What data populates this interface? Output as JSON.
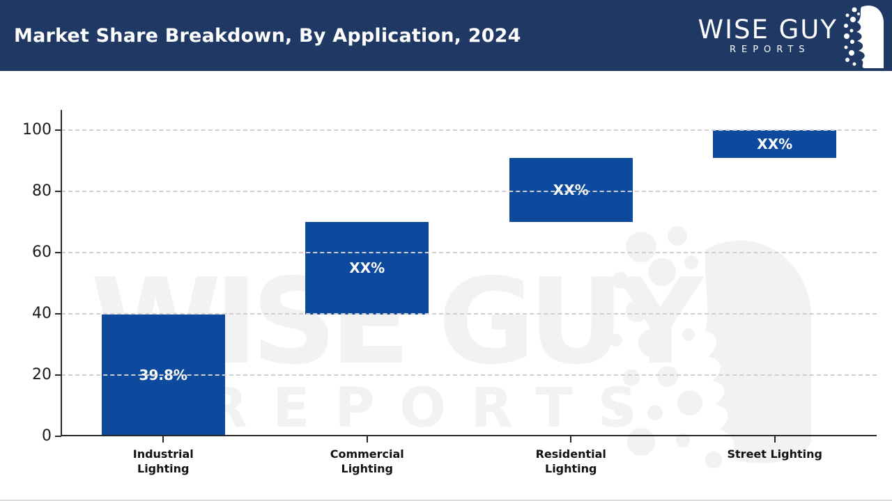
{
  "header": {
    "title": "Market Share Breakdown, By Application, 2024",
    "bg_color": "#1f3864",
    "logo": {
      "line1": "WISE GUY",
      "line2": "REPORTS"
    }
  },
  "watermark": {
    "line1": "WISE GUY",
    "line2": "REPORTS"
  },
  "chart_data": {
    "type": "bar",
    "variant": "waterfall",
    "title": "Market Share Breakdown, By Application, 2024",
    "categories": [
      "Industrial Lighting",
      "Commercial Lighting",
      "Residential Lighting",
      "Street Lighting"
    ],
    "category_lines": [
      [
        "Industrial",
        "Lighting"
      ],
      [
        "Commercial",
        "Lighting"
      ],
      [
        "Residential",
        "Lighting"
      ],
      [
        "Street Lighting"
      ]
    ],
    "bars": [
      {
        "category": "Industrial Lighting",
        "label": "39.8%",
        "start": 0,
        "end": 39.8
      },
      {
        "category": "Commercial Lighting",
        "label": "XX%",
        "start": 39.8,
        "end": 70
      },
      {
        "category": "Residential Lighting",
        "label": "XX%",
        "start": 70,
        "end": 91
      },
      {
        "category": "Street Lighting",
        "label": "XX%",
        "start": 91,
        "end": 100
      }
    ],
    "xlabel": "",
    "ylabel": "",
    "ylim": [
      0,
      100
    ],
    "yticks": [
      0,
      20,
      40,
      60,
      80,
      100
    ],
    "grid": {
      "horizontal": true,
      "style": "dashed"
    },
    "legend": "none",
    "bar_color": "#0d4a9d",
    "bar_label_color": "#ffffff",
    "axis_color": "#262626"
  }
}
